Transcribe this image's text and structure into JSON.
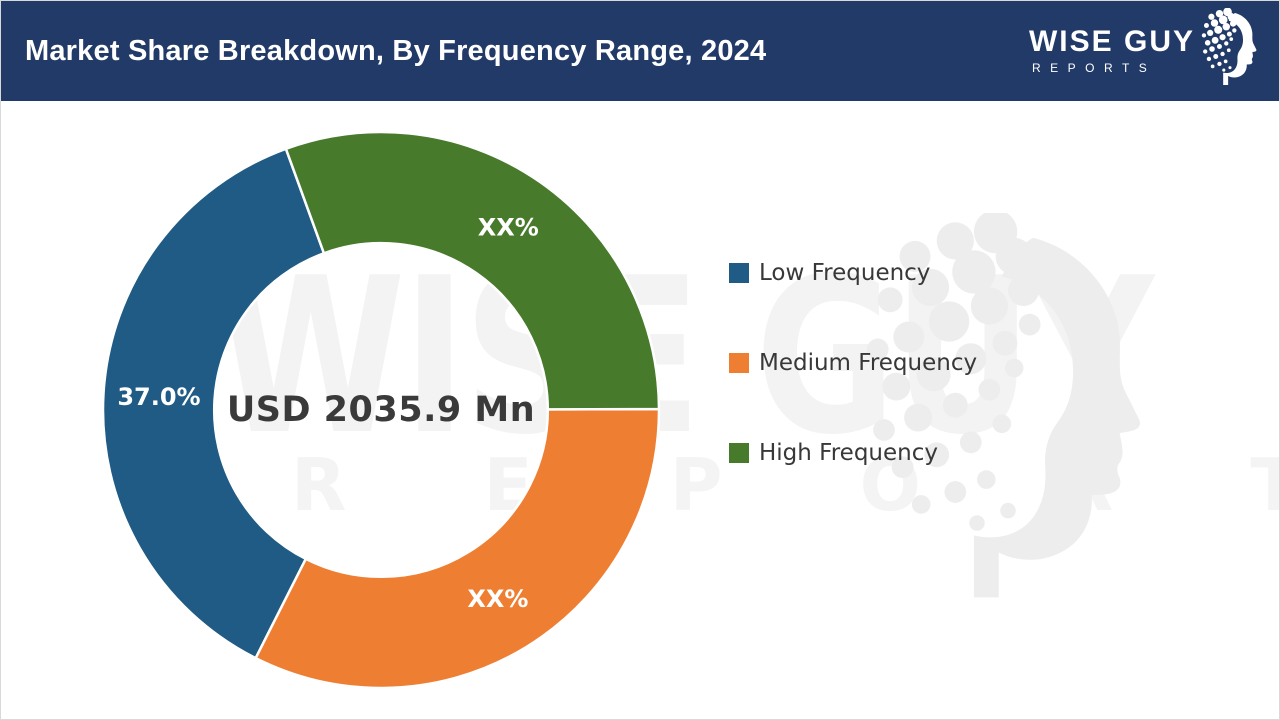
{
  "header": {
    "title": "Market Share Breakdown, By Frequency Range, 2024",
    "bg_color": "#223A68",
    "logo": {
      "line1": "WISE GUY",
      "line2": "REPORTS"
    }
  },
  "chart_data": {
    "type": "pie",
    "subtype": "donut",
    "title": "Market Share Breakdown, By Frequency Range, 2024",
    "center_label": "USD 2035.9 Mn",
    "categories": [
      "Low Frequency",
      "Medium Frequency",
      "High Frequency"
    ],
    "values": [
      37.0,
      32.5,
      30.5
    ],
    "slice_labels": [
      "37.0%",
      "XX%",
      "XX%"
    ],
    "colors": [
      "#1F5B84",
      "#EE7E32",
      "#477A2B"
    ],
    "start_angle": 110,
    "direction": "counterclockwise",
    "inner_radius_ratio": 0.6,
    "legend_position": "right",
    "grid": false
  },
  "legend": {
    "items": [
      {
        "label": "Low Frequency",
        "color": "#1F5B84"
      },
      {
        "label": "Medium Frequency",
        "color": "#EE7E32"
      },
      {
        "label": "High Frequency",
        "color": "#477A2B"
      }
    ]
  },
  "watermark": {
    "line1": "WISE GUY",
    "line2": "R E P O R T S"
  },
  "page": {
    "border_color": "#D9D9D9"
  }
}
